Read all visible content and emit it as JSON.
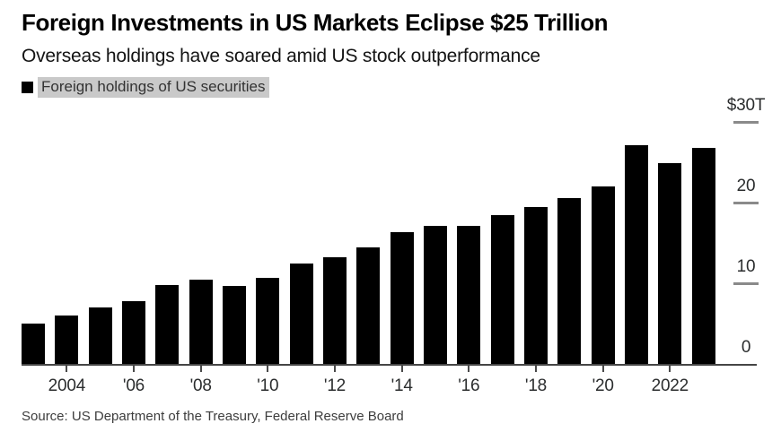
{
  "chart_data": {
    "type": "bar",
    "title": "Foreign Investments in US Markets Eclipse $25 Trillion",
    "subtitle": "Overseas holdings have soared amid US stock outperformance",
    "legend": {
      "label": "Foreign holdings of US securities",
      "swatch_color": "#000000",
      "highlight_color": "#c9c9c9"
    },
    "source": "Source: US Department of the Treasury, Federal Reserve Board",
    "unit": "USD trillions",
    "categories": [
      2003,
      2004,
      2005,
      2006,
      2007,
      2008,
      2009,
      2010,
      2011,
      2012,
      2013,
      2014,
      2015,
      2016,
      2017,
      2018,
      2019,
      2020,
      2021,
      2022,
      2023
    ],
    "values": [
      5.0,
      6.0,
      7.0,
      7.8,
      9.8,
      10.4,
      9.7,
      10.7,
      12.4,
      13.2,
      14.4,
      16.3,
      17.1,
      17.1,
      18.4,
      19.4,
      20.6,
      22.0,
      27.1,
      24.9,
      26.8
    ],
    "ylim": [
      0,
      30
    ],
    "grid": false,
    "legend_position": "top-left",
    "yticks": [
      {
        "label": "$30T",
        "value": 30
      },
      {
        "label": "20",
        "value": 20
      },
      {
        "label": "10",
        "value": 10
      },
      {
        "label": "0",
        "value": 0
      }
    ],
    "xticks": [
      {
        "year": 2004,
        "label": "2004"
      },
      {
        "year": 2006,
        "label": "'06"
      },
      {
        "year": 2008,
        "label": "'08"
      },
      {
        "year": 2010,
        "label": "'10"
      },
      {
        "year": 2012,
        "label": "'12"
      },
      {
        "year": 2014,
        "label": "'14"
      },
      {
        "year": 2016,
        "label": "'16"
      },
      {
        "year": 2018,
        "label": "'18"
      },
      {
        "year": 2020,
        "label": "'20"
      },
      {
        "year": 2022,
        "label": "2022"
      }
    ],
    "bar_color": "#000000",
    "axis_colors": {
      "baseline": "#454545",
      "tick_mark": "#4a4a4a",
      "tick_dash": "#8a8a8a",
      "text": "#2b2d2e"
    }
  }
}
